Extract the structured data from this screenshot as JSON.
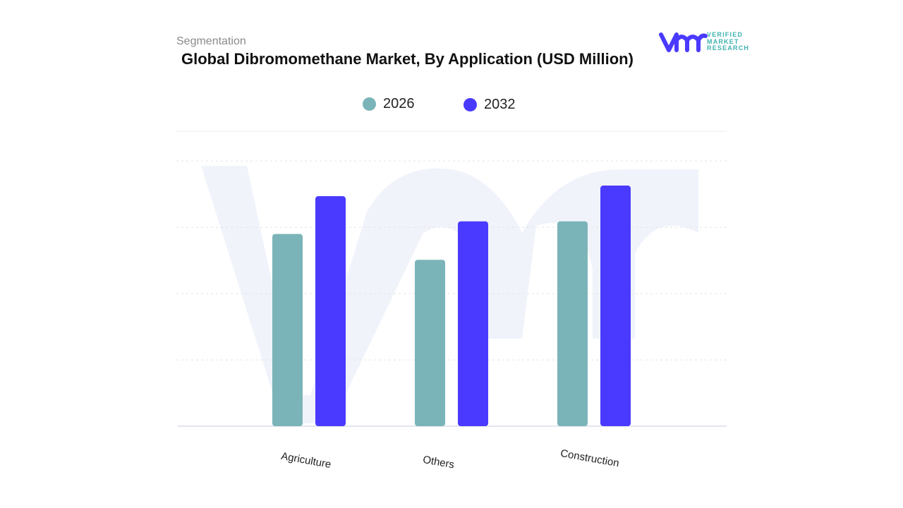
{
  "header": {
    "section": "Segmentation",
    "title": "Global Dibromomethane Market, By Application (USD Million)"
  },
  "logo": {
    "text": [
      "VERIFIED",
      "MARKET",
      "RESEARCH"
    ]
  },
  "colors": {
    "2026": "#7ab4b8",
    "2032": "#4a3aff"
  },
  "chart_data": {
    "type": "bar",
    "title": "Global Dibromomethane Market, By Application (USD Million)",
    "categories": [
      "Agriculture",
      "Others",
      "Construction"
    ],
    "series": [
      {
        "name": "2026",
        "values": [
          2.9,
          2.51,
          3.09
        ]
      },
      {
        "name": "2032",
        "values": [
          3.47,
          3.09,
          3.63
        ]
      }
    ],
    "xlabel": "",
    "ylabel": "",
    "ylim": [
      0,
      4.45
    ],
    "gridlines": [
      1,
      2,
      3,
      4
    ],
    "grid": true,
    "legend": "top-center"
  }
}
